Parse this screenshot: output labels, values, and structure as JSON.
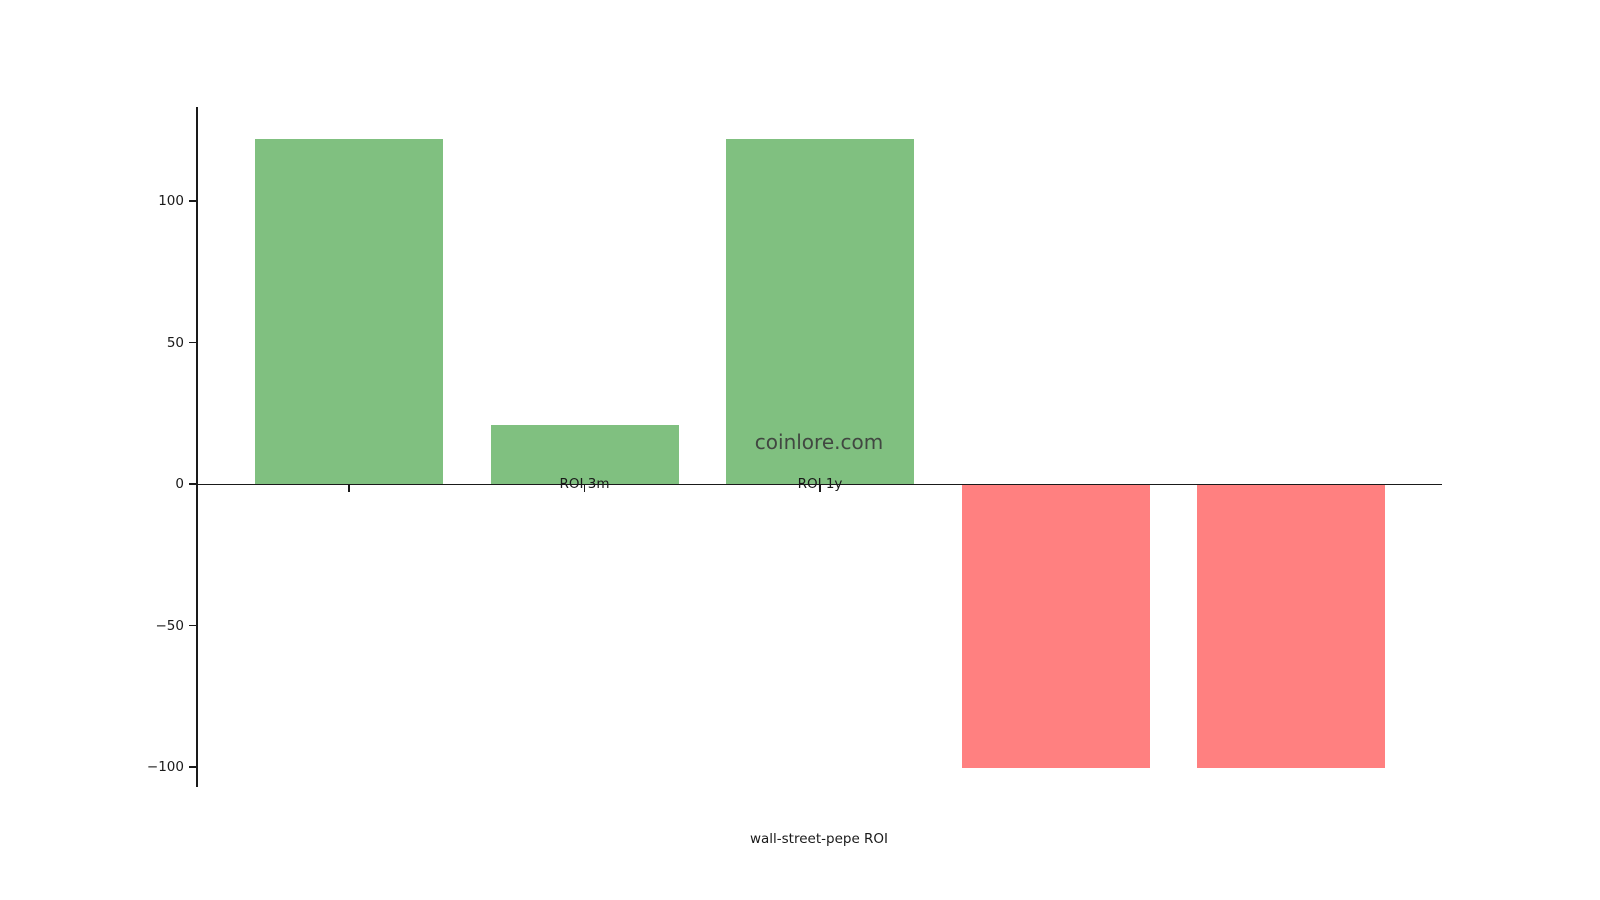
{
  "chart_data": {
    "type": "bar",
    "title": "",
    "xlabel": "wall-street-pepe ROI",
    "ylabel": "",
    "categories": [
      "",
      "ROI 3m",
      "ROI 1y",
      "",
      ""
    ],
    "values": [
      122,
      21,
      122,
      -100,
      -100
    ],
    "bar_colors": [
      "#80c080",
      "#80c080",
      "#80c080",
      "#ff8080",
      "#ff8080"
    ],
    "positive_color": "#80c080",
    "negative_color": "#ff8080",
    "yticks": [
      100,
      50,
      0,
      -50,
      -100
    ],
    "ytick_labels": [
      "100",
      "50",
      "0",
      "−50",
      "−100"
    ],
    "xticks": [
      {
        "index": 0,
        "label": ""
      },
      {
        "index": 1,
        "label": "ROI 3m"
      },
      {
        "index": 2,
        "label": "ROI 1y"
      }
    ],
    "ylim": [
      -107,
      133
    ],
    "grid": false,
    "legend_position": "none"
  },
  "watermark": {
    "text": "coinlore.com"
  }
}
